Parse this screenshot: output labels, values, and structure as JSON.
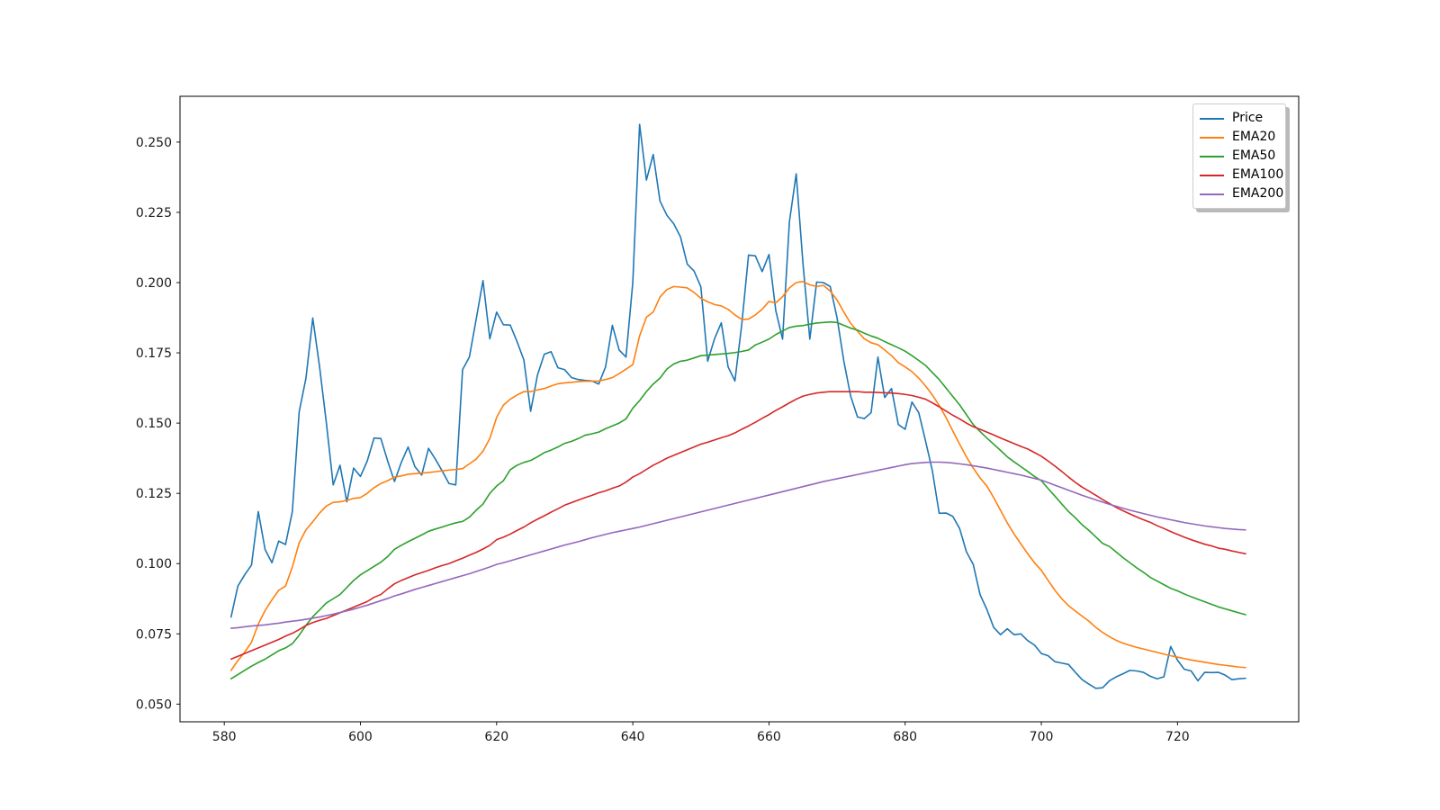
{
  "figure": {
    "background": "#ffffff"
  },
  "chart_data": {
    "type": "line",
    "title": "",
    "xlabel": "",
    "ylabel": "",
    "grid": false,
    "legend_position": "upper-right",
    "xlim": [
      573.5,
      737.8
    ],
    "ylim": [
      0.0437,
      0.2663
    ],
    "x_ticks": [
      580,
      600,
      620,
      640,
      660,
      680,
      700,
      720
    ],
    "y_ticks": [
      0.05,
      0.075,
      0.1,
      0.125,
      0.15,
      0.175,
      0.2,
      0.225,
      0.25
    ],
    "y_tick_decimals": 3,
    "x_start": 581,
    "x_step": 1,
    "series": [
      {
        "name": "Price",
        "color": "#1f77b4",
        "values": [
          0.081,
          0.092,
          0.096,
          0.0995,
          0.1185,
          0.105,
          0.1003,
          0.108,
          0.1068,
          0.1185,
          0.154,
          0.166,
          0.1874,
          0.17,
          0.15,
          0.128,
          0.135,
          0.122,
          0.134,
          0.131,
          0.1365,
          0.1447,
          0.1445,
          0.1365,
          0.1292,
          0.136,
          0.1415,
          0.1345,
          0.1315,
          0.141,
          0.1372,
          0.133,
          0.1285,
          0.128,
          0.169,
          0.1735,
          0.187,
          0.2007,
          0.18,
          0.1895,
          0.185,
          0.1849,
          0.179,
          0.1725,
          0.1542,
          0.1671,
          0.1745,
          0.1754,
          0.1697,
          0.169,
          0.1662,
          0.1655,
          0.1652,
          0.165,
          0.1639,
          0.17,
          0.1848,
          0.176,
          0.1735,
          0.2,
          0.2563,
          0.2365,
          0.2456,
          0.229,
          0.224,
          0.221,
          0.2163,
          0.2066,
          0.2041,
          0.1985,
          0.172,
          0.18,
          0.1857,
          0.17,
          0.165,
          0.185,
          0.2098,
          0.2095,
          0.2039,
          0.21,
          0.19,
          0.1799,
          0.2216,
          0.2387,
          0.2066,
          0.1799,
          0.2002,
          0.2,
          0.1986,
          0.1875,
          0.172,
          0.1596,
          0.1522,
          0.1516,
          0.1537,
          0.1735,
          0.1591,
          0.1623,
          0.1495,
          0.1478,
          0.1575,
          0.1537,
          0.1436,
          0.133,
          0.1179,
          0.118,
          0.1168,
          0.1125,
          0.1042,
          0.0997,
          0.089,
          0.0837,
          0.0773,
          0.0747,
          0.0768,
          0.0747,
          0.075,
          0.0726,
          0.071,
          0.068,
          0.0672,
          0.0651,
          0.0646,
          0.0641,
          0.0613,
          0.0587,
          0.0571,
          0.0556,
          0.0558,
          0.0583,
          0.0597,
          0.0608,
          0.062,
          0.0618,
          0.0613,
          0.0599,
          0.059,
          0.0597,
          0.0705,
          0.0656,
          0.0624,
          0.0618,
          0.0583,
          0.0613,
          0.0612,
          0.0613,
          0.0603,
          0.0587,
          0.059,
          0.0592
        ]
      },
      {
        "name": "EMA20",
        "color": "#ff7f0e",
        "values": [
          0.062,
          0.0655,
          0.0685,
          0.072,
          0.0785,
          0.0833,
          0.0871,
          0.0905,
          0.092,
          0.0988,
          0.1074,
          0.112,
          0.1149,
          0.118,
          0.1205,
          0.1218,
          0.122,
          0.1225,
          0.1232,
          0.1235,
          0.125,
          0.127,
          0.1285,
          0.1295,
          0.1308,
          0.1312,
          0.1318,
          0.132,
          0.1322,
          0.1324,
          0.1327,
          0.133,
          0.1333,
          0.1335,
          0.1338,
          0.1355,
          0.1372,
          0.14,
          0.1445,
          0.152,
          0.1564,
          0.1585,
          0.16,
          0.1612,
          0.1612,
          0.1618,
          0.1623,
          0.1632,
          0.164,
          0.1643,
          0.1645,
          0.1648,
          0.1649,
          0.1649,
          0.165,
          0.1655,
          0.1662,
          0.1676,
          0.1692,
          0.1708,
          0.181,
          0.1877,
          0.1895,
          0.1949,
          0.1975,
          0.1986,
          0.1984,
          0.1981,
          0.1965,
          0.1944,
          0.1932,
          0.1922,
          0.1917,
          0.1905,
          0.1885,
          0.1869,
          0.187,
          0.1885,
          0.1905,
          0.1933,
          0.1928,
          0.195,
          0.1981,
          0.2,
          0.2004,
          0.1992,
          0.1986,
          0.199,
          0.197,
          0.1938,
          0.1895,
          0.1855,
          0.1827,
          0.18,
          0.1786,
          0.1779,
          0.176,
          0.174,
          0.1715,
          0.17,
          0.1683,
          0.166,
          0.1632,
          0.16,
          0.1563,
          0.152,
          0.1472,
          0.1425,
          0.138,
          0.134,
          0.1305,
          0.1276,
          0.1235,
          0.119,
          0.1145,
          0.1105,
          0.107,
          0.1035,
          0.1003,
          0.0976,
          0.094,
          0.0905,
          0.0875,
          0.085,
          0.0831,
          0.0813,
          0.0795,
          0.0773,
          0.0755,
          0.074,
          0.0727,
          0.0717,
          0.0709,
          0.0702,
          0.0696,
          0.069,
          0.0684,
          0.0678,
          0.0672,
          0.0667,
          0.0662,
          0.0657,
          0.0653,
          0.0649,
          0.0645,
          0.0641,
          0.0638,
          0.0635,
          0.0632,
          0.063
        ]
      },
      {
        "name": "EMA50",
        "color": "#2ca02c",
        "values": [
          0.059,
          0.0605,
          0.062,
          0.0635,
          0.0648,
          0.066,
          0.0675,
          0.069,
          0.07,
          0.0715,
          0.0745,
          0.078,
          0.0811,
          0.0835,
          0.086,
          0.0875,
          0.089,
          0.0915,
          0.094,
          0.096,
          0.0975,
          0.099,
          0.1005,
          0.1025,
          0.1051,
          0.1065,
          0.1078,
          0.109,
          0.1102,
          0.1115,
          0.1123,
          0.113,
          0.1138,
          0.1145,
          0.115,
          0.1165,
          0.119,
          0.1212,
          0.125,
          0.1276,
          0.1295,
          0.1334,
          0.135,
          0.136,
          0.1367,
          0.138,
          0.1395,
          0.1404,
          0.1415,
          0.1428,
          0.1435,
          0.1445,
          0.1457,
          0.1462,
          0.1468,
          0.148,
          0.149,
          0.15,
          0.1515,
          0.1553,
          0.158,
          0.1612,
          0.1639,
          0.166,
          0.1692,
          0.171,
          0.172,
          0.1724,
          0.1732,
          0.174,
          0.1742,
          0.1744,
          0.1746,
          0.1748,
          0.1751,
          0.1755,
          0.176,
          0.1778,
          0.1788,
          0.1799,
          0.1815,
          0.1828,
          0.184,
          0.1845,
          0.1847,
          0.1852,
          0.1856,
          0.1858,
          0.186,
          0.1858,
          0.1848,
          0.1838,
          0.1831,
          0.182,
          0.181,
          0.1802,
          0.179,
          0.1779,
          0.1768,
          0.1756,
          0.174,
          0.1723,
          0.1705,
          0.168,
          0.1655,
          0.1625,
          0.1595,
          0.1565,
          0.153,
          0.1495,
          0.147,
          0.1447,
          0.1425,
          0.1403,
          0.138,
          0.1362,
          0.1345,
          0.1328,
          0.131,
          0.1295,
          0.1267,
          0.124,
          0.1212,
          0.1185,
          0.1163,
          0.1138,
          0.1118,
          0.1095,
          0.1072,
          0.1061,
          0.1041,
          0.1021,
          0.1003,
          0.0985,
          0.0969,
          0.0951,
          0.0938,
          0.0925,
          0.0912,
          0.0903,
          0.0892,
          0.0882,
          0.0873,
          0.0864,
          0.0855,
          0.0846,
          0.0839,
          0.0832,
          0.0825,
          0.0818
        ]
      },
      {
        "name": "EMA100",
        "color": "#d62728",
        "values": [
          0.066,
          0.067,
          0.068,
          0.069,
          0.07,
          0.071,
          0.072,
          0.073,
          0.0742,
          0.0752,
          0.0765,
          0.078,
          0.079,
          0.0798,
          0.0805,
          0.0815,
          0.0825,
          0.0835,
          0.0845,
          0.0855,
          0.0865,
          0.088,
          0.089,
          0.091,
          0.0928,
          0.094,
          0.095,
          0.096,
          0.0968,
          0.0976,
          0.0985,
          0.0993,
          0.1,
          0.101,
          0.1019,
          0.103,
          0.104,
          0.1052,
          0.1065,
          0.1085,
          0.1094,
          0.1105,
          0.1118,
          0.113,
          0.1145,
          0.1158,
          0.117,
          0.1183,
          0.1195,
          0.1208,
          0.1217,
          0.1226,
          0.1235,
          0.1243,
          0.1252,
          0.1259,
          0.1268,
          0.1276,
          0.129,
          0.1308,
          0.132,
          0.1335,
          0.135,
          0.1362,
          0.1375,
          0.1385,
          0.1395,
          0.1405,
          0.1415,
          0.1425,
          0.1432,
          0.144,
          0.1448,
          0.1455,
          0.1465,
          0.1478,
          0.149,
          0.1503,
          0.1517,
          0.153,
          0.1545,
          0.1558,
          0.1572,
          0.1585,
          0.1596,
          0.1602,
          0.1607,
          0.161,
          0.1612,
          0.1612,
          0.1612,
          0.1612,
          0.1612,
          0.161,
          0.161,
          0.1609,
          0.1608,
          0.1607,
          0.1605,
          0.1602,
          0.1598,
          0.1592,
          0.1585,
          0.1572,
          0.1558,
          0.1543,
          0.1528,
          0.1515,
          0.15,
          0.1487,
          0.1478,
          0.1468,
          0.1458,
          0.1447,
          0.1437,
          0.1427,
          0.1417,
          0.1408,
          0.1395,
          0.1382,
          0.1365,
          0.1347,
          0.1328,
          0.1308,
          0.1289,
          0.1272,
          0.1258,
          0.1243,
          0.1228,
          0.1214,
          0.12,
          0.1188,
          0.1177,
          0.1166,
          0.1156,
          0.1147,
          0.1135,
          0.1125,
          0.1114,
          0.1104,
          0.1094,
          0.1085,
          0.1077,
          0.1069,
          0.1063,
          0.1055,
          0.1051,
          0.1045,
          0.104,
          0.1035
        ]
      },
      {
        "name": "EMA200",
        "color": "#9467bd",
        "values": [
          0.077,
          0.0772,
          0.0775,
          0.0778,
          0.078,
          0.0782,
          0.0785,
          0.0788,
          0.0792,
          0.0795,
          0.0798,
          0.0802,
          0.0806,
          0.081,
          0.0815,
          0.082,
          0.0826,
          0.0832,
          0.0838,
          0.0845,
          0.0852,
          0.086,
          0.0868,
          0.0876,
          0.0885,
          0.0892,
          0.09,
          0.0908,
          0.0915,
          0.0922,
          0.0929,
          0.0936,
          0.0943,
          0.095,
          0.0957,
          0.0964,
          0.0972,
          0.098,
          0.0988,
          0.0997,
          0.1003,
          0.101,
          0.1017,
          0.1024,
          0.1031,
          0.1038,
          0.1045,
          0.1052,
          0.1059,
          0.1066,
          0.1072,
          0.1078,
          0.1085,
          0.1092,
          0.1098,
          0.1104,
          0.111,
          0.1115,
          0.112,
          0.1125,
          0.113,
          0.1136,
          0.1142,
          0.1148,
          0.1154,
          0.116,
          0.1166,
          0.1172,
          0.1178,
          0.1184,
          0.119,
          0.1196,
          0.1202,
          0.1208,
          0.1214,
          0.122,
          0.1226,
          0.1232,
          0.1238,
          0.1244,
          0.125,
          0.1256,
          0.1262,
          0.1268,
          0.1274,
          0.128,
          0.1286,
          0.1292,
          0.1297,
          0.1302,
          0.1307,
          0.1312,
          0.1317,
          0.1322,
          0.1327,
          0.1332,
          0.1337,
          0.1342,
          0.1347,
          0.1352,
          0.1356,
          0.1358,
          0.136,
          0.1361,
          0.1361,
          0.136,
          0.1358,
          0.1355,
          0.1352,
          0.1348,
          0.1344,
          0.134,
          0.1335,
          0.133,
          0.1325,
          0.132,
          0.1315,
          0.1309,
          0.1303,
          0.1297,
          0.1288,
          0.1279,
          0.127,
          0.1261,
          0.1252,
          0.1243,
          0.1235,
          0.1227,
          0.1219,
          0.1211,
          0.1204,
          0.1197,
          0.119,
          0.1184,
          0.1178,
          0.1172,
          0.1166,
          0.1161,
          0.1156,
          0.1151,
          0.1146,
          0.1142,
          0.1138,
          0.1134,
          0.1131,
          0.1128,
          0.1125,
          0.1123,
          0.1121,
          0.112
        ]
      }
    ]
  }
}
